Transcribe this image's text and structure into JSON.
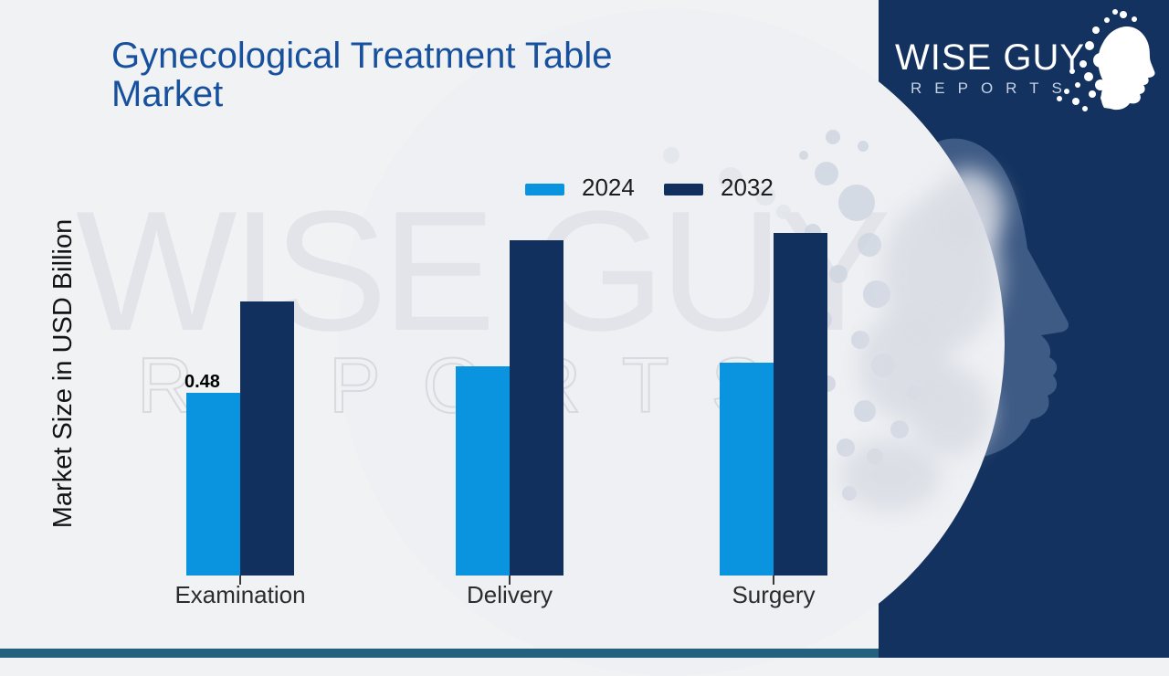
{
  "page": {
    "background": "#f1f2f3",
    "footer_bar_color": "#24617e"
  },
  "header": {
    "title_line1": "Gynecological Treatment Table",
    "title_line2": "Market",
    "title_color": "#17509d"
  },
  "watermark": {
    "big_text": "WISE GUY",
    "sub_text": "REPORTS"
  },
  "brand": {
    "name": "WISE GUY",
    "sub_name": "REPORTS",
    "block_color": "#14325f"
  },
  "legend": {
    "items": [
      {
        "label": "2024",
        "color": "#0a93df"
      },
      {
        "label": "2032",
        "color": "#12305e"
      }
    ]
  },
  "chart_data": {
    "type": "bar",
    "title": "Gynecological Treatment Table Market",
    "xlabel": "",
    "ylabel": "Market Size in USD Billion",
    "categories": [
      "Examination",
      "Delivery",
      "Surgery"
    ],
    "series": [
      {
        "name": "2024",
        "color": "#0a93df",
        "values": [
          0.48,
          0.55,
          0.56
        ]
      },
      {
        "name": "2032",
        "color": "#12305e",
        "values": [
          0.72,
          0.88,
          0.9
        ]
      }
    ],
    "annotations": [
      {
        "text": "0.48",
        "category": "Examination",
        "series": "2024"
      }
    ],
    "ylim": [
      0,
      1.0
    ],
    "grid": false,
    "legend_position": "top"
  }
}
